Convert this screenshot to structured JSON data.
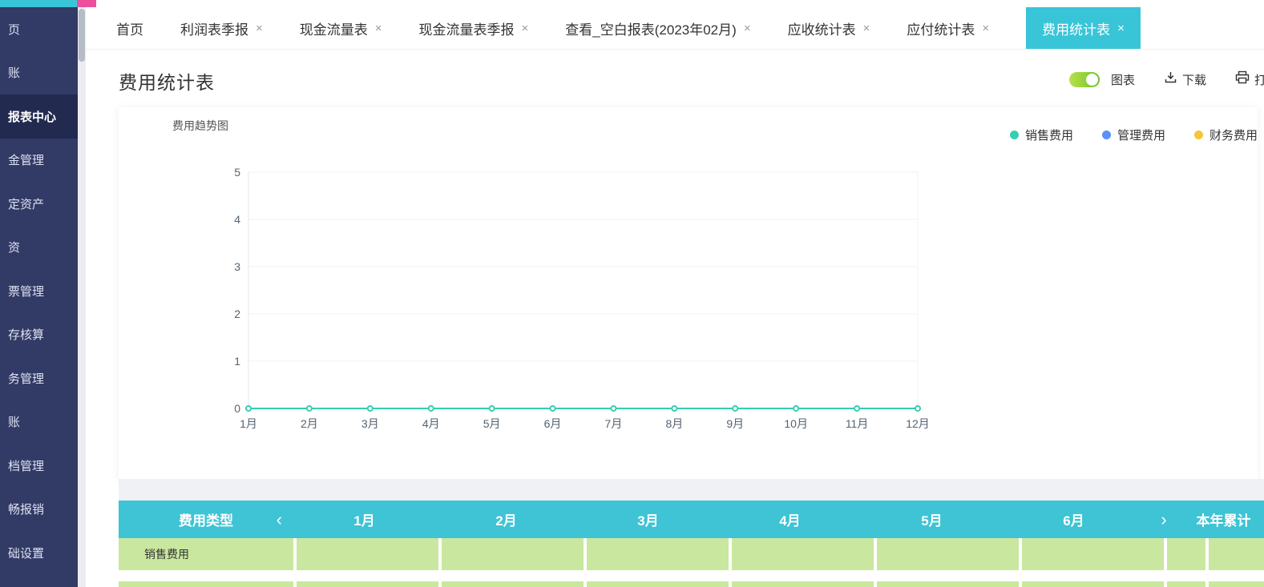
{
  "accents": {
    "cyan": "#38c5d8",
    "pink": "#ee4f9b",
    "sidebar_bg": "#323a66",
    "sidebar_active_bg": "#222a50",
    "table_header_bg": "#3ec4d4",
    "row_green": "#c9e79f",
    "toggle_green": "#6fc22a"
  },
  "sidebar": {
    "items": [
      {
        "label": "页",
        "active": false
      },
      {
        "label": "账",
        "active": false
      },
      {
        "label": "报表中心",
        "active": true
      },
      {
        "label": "金管理",
        "active": false
      },
      {
        "label": "定资产",
        "active": false
      },
      {
        "label": "资",
        "active": false
      },
      {
        "label": "票管理",
        "active": false
      },
      {
        "label": "存核算",
        "active": false
      },
      {
        "label": "务管理",
        "active": false
      },
      {
        "label": "账",
        "active": false
      },
      {
        "label": "档管理",
        "active": false
      },
      {
        "label": "畅报销",
        "active": false
      },
      {
        "label": "础设置",
        "active": false
      }
    ]
  },
  "tabs": [
    {
      "label": "首页",
      "closable": false,
      "active": false
    },
    {
      "label": "利润表季报",
      "closable": true,
      "active": false
    },
    {
      "label": "现金流量表",
      "closable": true,
      "active": false
    },
    {
      "label": "现金流量表季报",
      "closable": true,
      "active": false
    },
    {
      "label": "查看_空白报表(2023年02月)",
      "closable": true,
      "active": false
    },
    {
      "label": "应收统计表",
      "closable": true,
      "active": false
    },
    {
      "label": "应付统计表",
      "closable": true,
      "active": false
    },
    {
      "label": "费用统计表",
      "closable": true,
      "active": true
    }
  ],
  "page": {
    "title": "费用统计表",
    "chart_toggle_label": "图表",
    "chart_toggle_on": true,
    "download_label": "下载",
    "print_label": "打印"
  },
  "chart": {
    "title": "费用趋势图"
  },
  "chart_data": {
    "type": "line",
    "title": "费用趋势图",
    "x": [
      "1月",
      "2月",
      "3月",
      "4月",
      "5月",
      "6月",
      "7月",
      "8月",
      "9月",
      "10月",
      "11月",
      "12月"
    ],
    "series": [
      {
        "name": "销售费用",
        "color": "#35cfb0",
        "values": [
          0,
          0,
          0,
          0,
          0,
          0,
          0,
          0,
          0,
          0,
          0,
          0
        ]
      },
      {
        "name": "管理费用",
        "color": "#5b8ff9",
        "values": [
          0,
          0,
          0,
          0,
          0,
          0,
          0,
          0,
          0,
          0,
          0,
          0
        ]
      },
      {
        "name": "财务费用",
        "color": "#f5c639",
        "values": [
          0,
          0,
          0,
          0,
          0,
          0,
          0,
          0,
          0,
          0,
          0,
          0
        ]
      }
    ],
    "ylim": [
      0,
      5
    ],
    "yticks": [
      0,
      1,
      2,
      3,
      4,
      5
    ],
    "grid": true,
    "legend_position": "top-right"
  },
  "table": {
    "col_type_header": "费用类型",
    "month_headers": [
      "1月",
      "2月",
      "3月",
      "4月",
      "5月",
      "6月"
    ],
    "last_header": "本年累计",
    "prev_arrow": "‹",
    "next_arrow": "›",
    "rows": [
      {
        "type": "销售费用",
        "values": [
          "",
          "",
          "",
          "",
          "",
          "",
          ""
        ]
      }
    ]
  }
}
